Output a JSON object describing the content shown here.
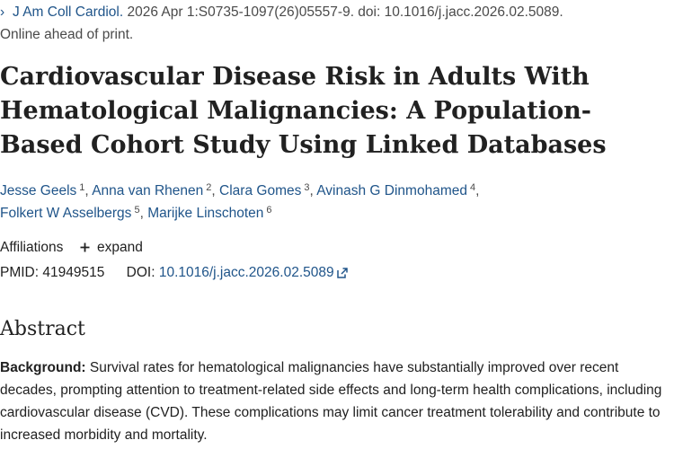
{
  "citation": {
    "chevron": "›",
    "journal": "J Am Coll Cardiol.",
    "details": " 2026 Apr 1:S0735-1097(26)05557-9. doi: 10.1016/j.jacc.2026.02.5089.",
    "status": "Online ahead of print."
  },
  "title": "Cardiovascular Disease Risk in Adults With Hematological Malignancies: A Population-Based Cohort Study Using Linked Databases",
  "authors": [
    {
      "name": "Jesse Geels",
      "aff": "1"
    },
    {
      "name": "Anna van Rhenen",
      "aff": "2"
    },
    {
      "name": "Clara Gomes",
      "aff": "3"
    },
    {
      "name": "Avinash G Dinmohamed",
      "aff": "4"
    },
    {
      "name": "Folkert W Asselbergs",
      "aff": "5"
    },
    {
      "name": "Marijke Linschoten",
      "aff": "6"
    }
  ],
  "affiliations": {
    "label": "Affiliations",
    "expand_label": "expand",
    "expand_icon": "plus-icon"
  },
  "identifiers": {
    "pmid_label": "PMID:",
    "pmid": "41949515",
    "doi_label": "DOI:",
    "doi": "10.1016/j.jacc.2026.02.5089",
    "doi_icon": "external-link-icon"
  },
  "abstract": {
    "heading": "Abstract",
    "background_label": "Background:",
    "background_text": " Survival rates for hematological malignancies have substantially improved over recent decades, prompting attention to treatment-related side effects and long-term health complications, including cardiovascular disease (CVD). These complications may limit cancer treatment tolerability and contribute to increased morbidity and mortality."
  },
  "colors": {
    "link": "#20558a",
    "text": "#212121",
    "muted": "#4a4a4a"
  }
}
